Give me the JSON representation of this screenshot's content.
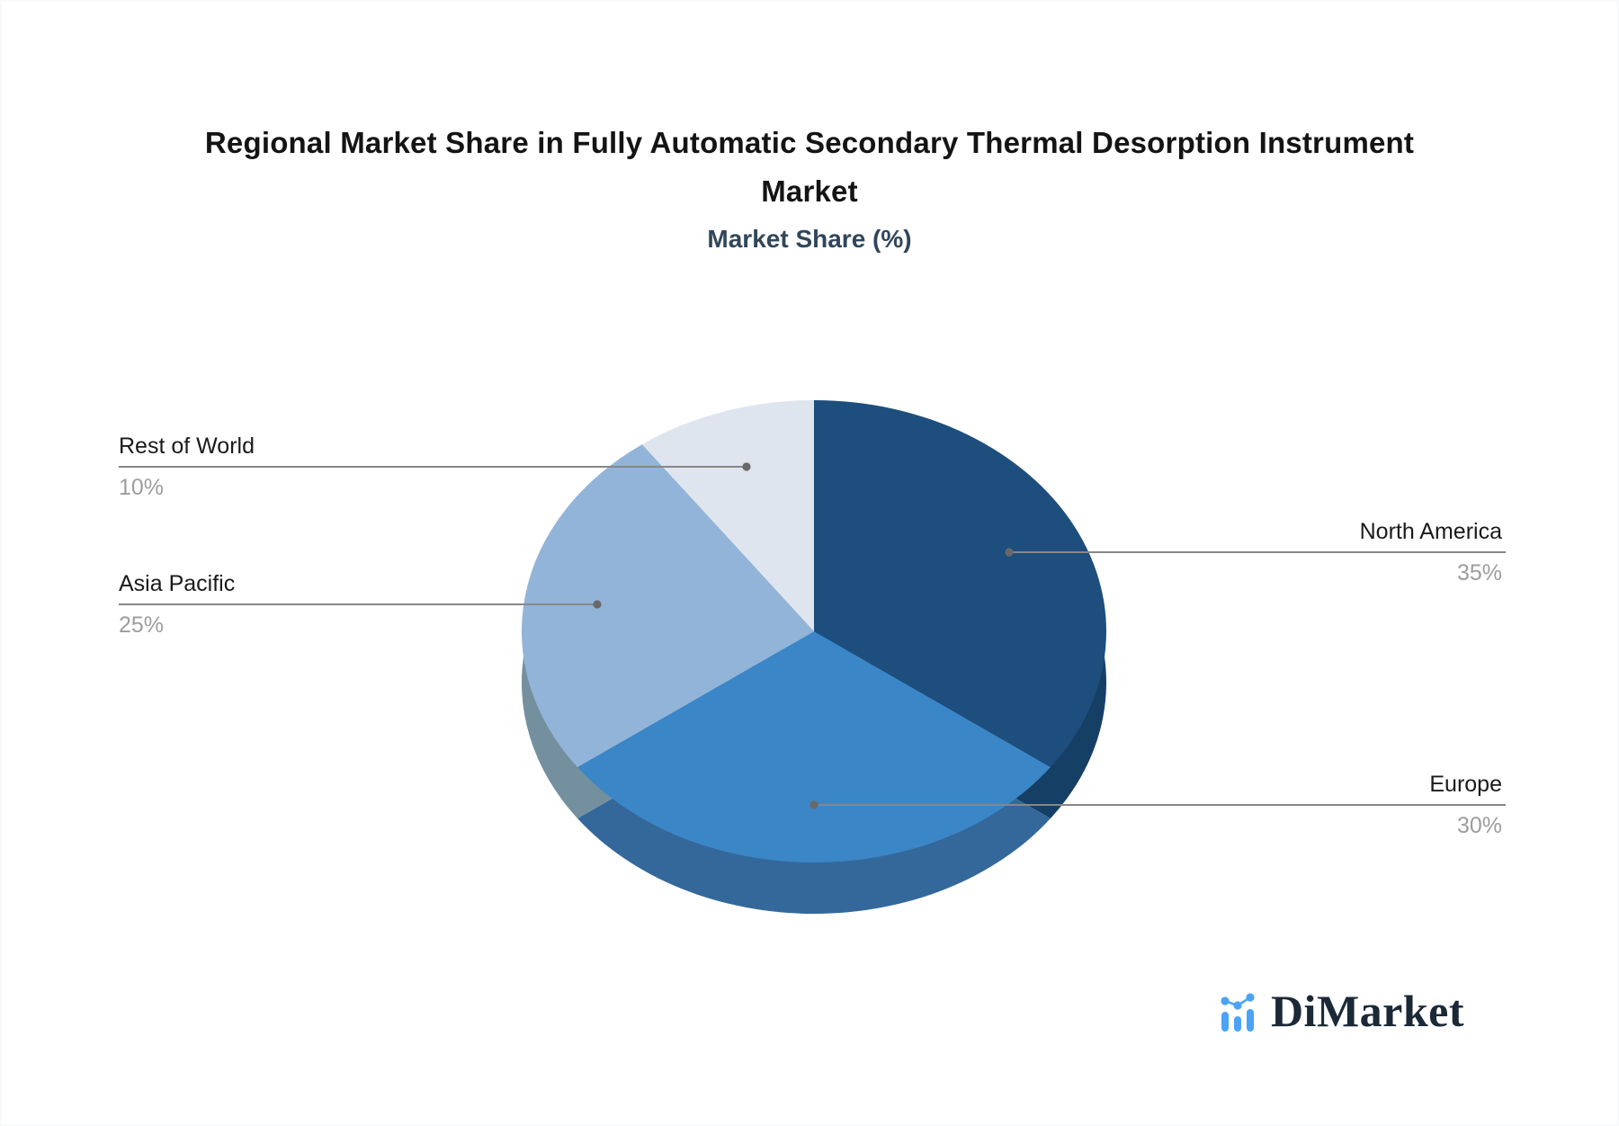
{
  "header": {
    "title": "Regional Market Share in Fully Automatic Secondary Thermal Desorption Instrument Market",
    "subtitle": "Market Share (%)"
  },
  "chart_data": {
    "type": "pie",
    "title": "Regional Market Share in Fully Automatic Secondary Thermal Desorption Instrument Market",
    "subtitle": "Market Share (%)",
    "unit": "%",
    "style": "3d-pie",
    "start_angle_deg": 90,
    "clockwise": true,
    "legend_position": "none",
    "slices": [
      {
        "label": "North America",
        "value": 35,
        "pct_label": "35%",
        "color": "#1d4e7d",
        "side_color": "#163f66",
        "label_side": "right"
      },
      {
        "label": "Europe",
        "value": 30,
        "pct_label": "30%",
        "color": "#3b86c7",
        "side_color": "#34689b",
        "label_side": "right"
      },
      {
        "label": "Asia Pacific",
        "value": 25,
        "pct_label": "25%",
        "color": "#92b4d8",
        "side_color": "#74909f",
        "label_side": "left"
      },
      {
        "label": "Rest of World",
        "value": 10,
        "pct_label": "10%",
        "color": "#dfe5ee",
        "side_color": "#bcc8d6",
        "label_side": "left"
      }
    ],
    "label_name_color": "#1a1a1a",
    "label_value_color": "#9d9d9d",
    "leader_line_color": "#878787",
    "leader_dot_color": "#696969"
  },
  "logo": {
    "text": "DiMarket",
    "icon": "mini-bar-chart-icon",
    "icon_color": "#4ba3f5",
    "text_color": "#1b2937"
  }
}
